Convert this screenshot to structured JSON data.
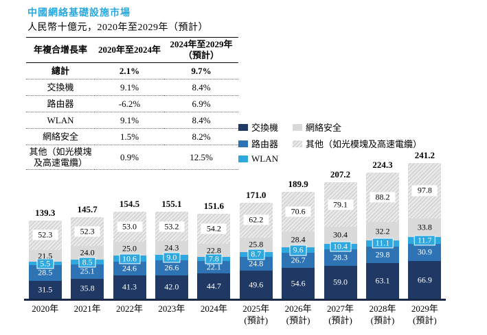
{
  "title": "中國網絡基礎設施市場",
  "subtitle": "人民幣十億元，2020年至2029年（預計）",
  "colors": {
    "title_accent": "#29A9E1",
    "axis": "#1B2A4A",
    "hatch_bg": "#ECECEC",
    "hatch_stripe": "#D5D5D5"
  },
  "table": {
    "headers": [
      "年複合增長率",
      "2020年至2024年",
      "2024年至2029年\n（預計）"
    ],
    "rows": [
      {
        "label": "總計",
        "v1": "2.1%",
        "v2": "9.7%",
        "bold": true
      },
      {
        "label": "交換機",
        "v1": "9.1%",
        "v2": "8.4%",
        "bold": false
      },
      {
        "label": "路由器",
        "v1": "-6.2%",
        "v2": "6.9%",
        "bold": false
      },
      {
        "label": "WLAN",
        "v1": "9.1%",
        "v2": "8.4%",
        "bold": false
      },
      {
        "label": "網絡安全",
        "v1": "1.5%",
        "v2": "8.2%",
        "bold": false
      },
      {
        "label": "其他（如光模塊\n及高速電纜）",
        "v1": "0.9%",
        "v2": "12.5%",
        "bold": false
      }
    ]
  },
  "chart_data": {
    "type": "bar",
    "stacked": true,
    "unit": "人民幣十億元",
    "categories": [
      "2020年",
      "2021年",
      "2022年",
      "2023年",
      "2024年",
      "2025年",
      "2026年",
      "2027年",
      "2028年",
      "2029年"
    ],
    "forecast_note": "(預計)",
    "forecast_from_index": 5,
    "series": [
      {
        "key": "switches",
        "name": "交換機",
        "color": "#1F3864",
        "values": [
          "31.5",
          "35.8",
          "41.3",
          "42.0",
          "44.7",
          "49.6",
          "54.6",
          "59.0",
          "63.1",
          "66.9"
        ]
      },
      {
        "key": "routers",
        "name": "路由器",
        "color": "#2E74B5",
        "values": [
          "28.5",
          "25.1",
          "24.6",
          "26.6",
          "22.1",
          "24.8",
          "26.7",
          "28.3",
          "29.8",
          "30.9"
        ]
      },
      {
        "key": "wlan",
        "name": "WLAN",
        "color": "#2FA8DF",
        "values": [
          "5.5",
          "8.5",
          "10.6",
          "9.0",
          "7.8",
          "8.7",
          "9.6",
          "10.4",
          "11.1",
          "11.7"
        ]
      },
      {
        "key": "network-security",
        "name": "網絡安全",
        "color": "#D9D9D9",
        "values": [
          "21.5",
          "24.0",
          "25.0",
          "24.3",
          "22.8",
          "25.8",
          "28.4",
          "30.4",
          "32.2",
          "33.8"
        ]
      },
      {
        "key": "others",
        "name": "其他（如光模塊及高速電纜）",
        "color": "hatch",
        "values": [
          "52.3",
          "52.3",
          "53.0",
          "53.2",
          "54.2",
          "62.2",
          "70.6",
          "79.1",
          "88.2",
          "97.8"
        ]
      }
    ],
    "totals": [
      "139.3",
      "145.7",
      "154.5",
      "155.1",
      "151.6",
      "171.0",
      "189.9",
      "207.2",
      "224.3",
      "241.2"
    ],
    "ylim": [
      0,
      260
    ],
    "grid": false,
    "legend_position": "right-of-table"
  }
}
